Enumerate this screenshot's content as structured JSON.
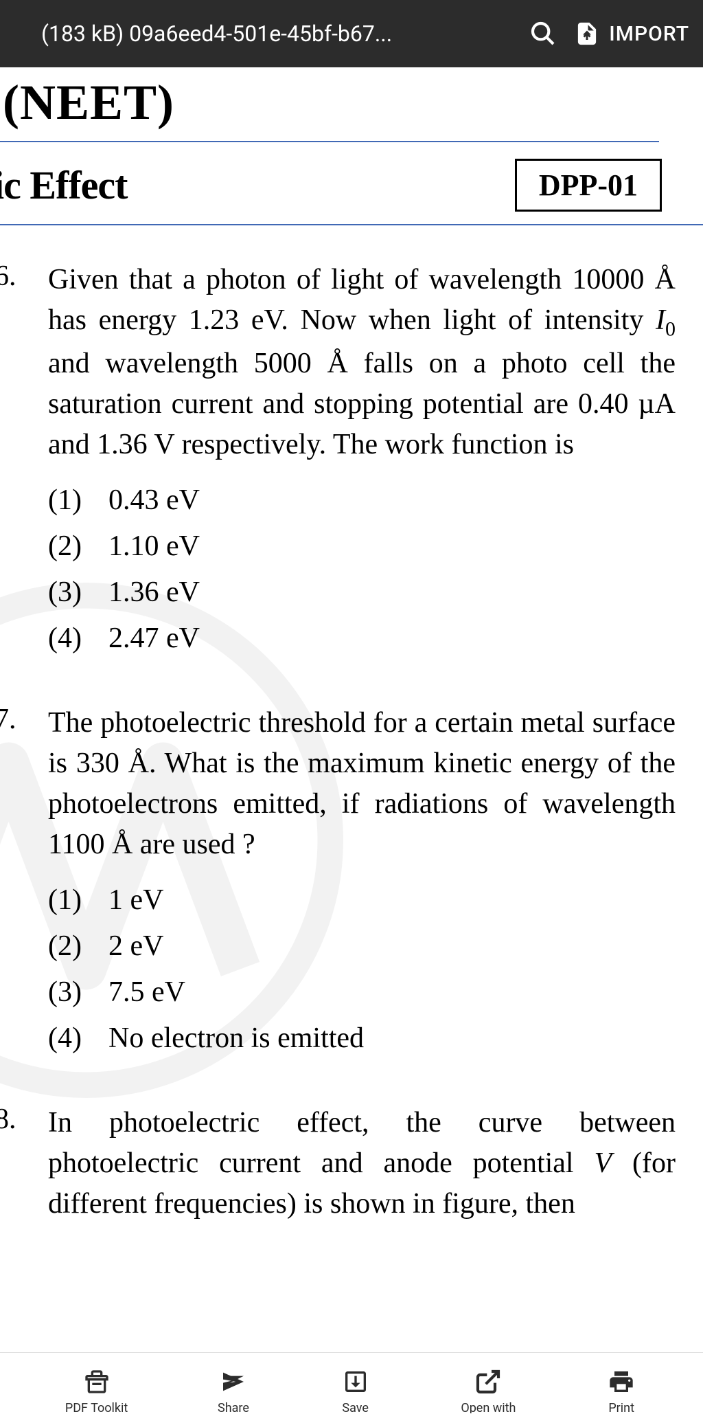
{
  "topbar": {
    "file_title": "(183 kB) 09a6eed4-501e-45bf-b67...",
    "import_label": "IMPORT"
  },
  "doc": {
    "neet_header": ") (NEET)",
    "section_title": "ic Effect",
    "dpp_label": "DPP-01"
  },
  "questions": [
    {
      "number": "6.",
      "text_html": "Given that a photon of light of wavelength 10000 Å has energy 1.23 eV. Now when light of intensity <i>I</i><span class='sub'>0</span> and wavelength 5000 Å falls on a photo cell the saturation current and stopping potential are 0.40 µA and 1.36 V respectively. The work function is",
      "options": [
        {
          "n": "(1)",
          "t": "0.43 eV"
        },
        {
          "n": "(2)",
          "t": "1.10 eV"
        },
        {
          "n": "(3)",
          "t": "1.36 eV"
        },
        {
          "n": "(4)",
          "t": "2.47 eV"
        }
      ]
    },
    {
      "number": "7.",
      "text_html": "The photoelectric threshold for a certain metal surface is 330 Å. What is the maximum kinetic energy of the photoelectrons emitted, if radiations of wavelength 1100 Å are used ?",
      "options": [
        {
          "n": "(1)",
          "t": "1 eV"
        },
        {
          "n": "(2)",
          "t": "2 eV"
        },
        {
          "n": "(3)",
          "t": "7.5 eV"
        },
        {
          "n": "(4)",
          "t": "No electron is emitted"
        }
      ]
    },
    {
      "number": "8.",
      "text_html": "In photoelectric effect, the curve between photoelectric current and anode potential <i>V</i> (for different frequencies) is shown in figure, then",
      "options": []
    }
  ],
  "bottombar": {
    "items": [
      {
        "label": "PDF Toolkit"
      },
      {
        "label": "Share"
      },
      {
        "label": "Save"
      },
      {
        "label": "Open with"
      },
      {
        "label": "Print"
      }
    ]
  },
  "colors": {
    "topbar_bg": "#2c2c2c",
    "divider": "#4169b5",
    "text": "#000000",
    "watermark": "#cccccc"
  }
}
